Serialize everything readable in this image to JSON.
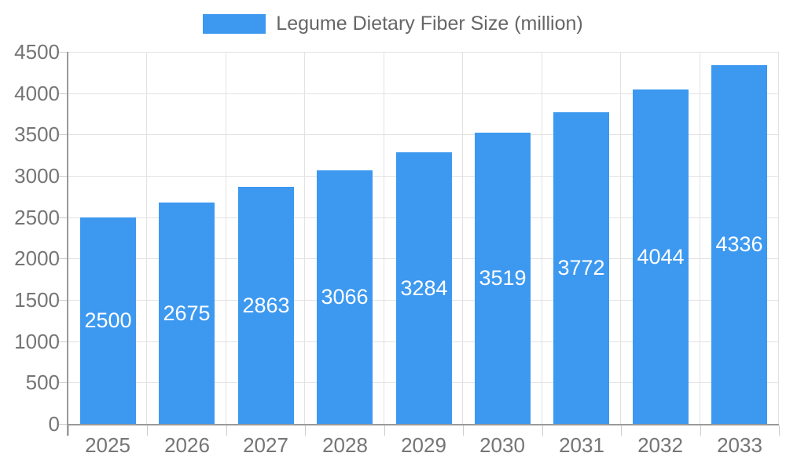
{
  "legend": {
    "label": "Legume Dietary Fiber Size (million)"
  },
  "chart_data": {
    "type": "bar",
    "title": "Legume Dietary Fiber Size (million)",
    "categories": [
      "2025",
      "2026",
      "2027",
      "2028",
      "2029",
      "2030",
      "2031",
      "2032",
      "2033"
    ],
    "values": [
      2500,
      2675,
      2863,
      3066,
      3284,
      3519,
      3772,
      4044,
      4336
    ],
    "xlabel": "",
    "ylabel": "",
    "ylim": [
      0,
      4500
    ],
    "yticks": [
      0,
      500,
      1000,
      1500,
      2000,
      2500,
      3000,
      3500,
      4000,
      4500
    ],
    "grid": true,
    "legend_position": "top-center",
    "value_labels": "inside-center-white"
  },
  "colors": {
    "bar": "#3d99f0",
    "grid": "#e2e2e2",
    "axis": "#9a9a9a",
    "tick": "#cccccc",
    "tick_label": "#757575",
    "legend_text": "#666666",
    "value_label": "#ffffff"
  }
}
